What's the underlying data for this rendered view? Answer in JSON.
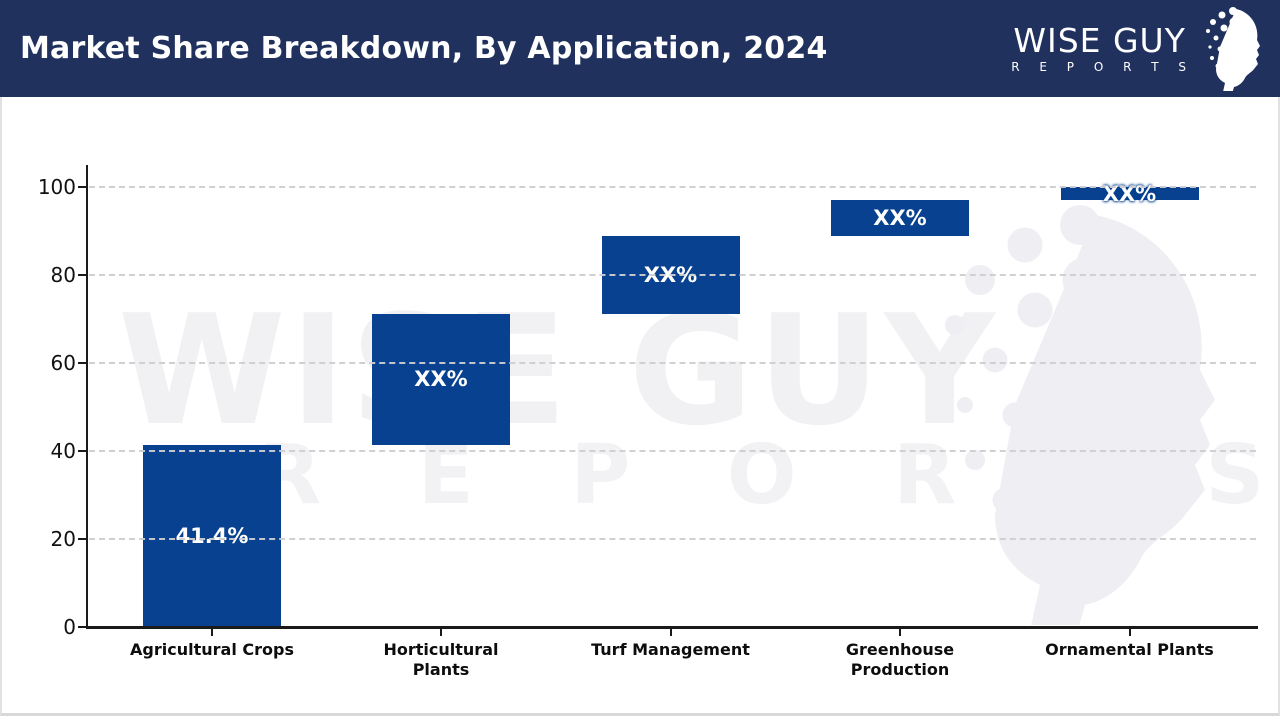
{
  "header": {
    "title": "Market Share Breakdown, By Application, 2024",
    "bg_color": "#20315e",
    "logo": {
      "wordmark": "WISE GUY",
      "subtext": "R E P O R T S"
    }
  },
  "watermark": {
    "wordmark": "WISE GUY",
    "subtext": "R E P O R T S"
  },
  "chart_data": {
    "type": "bar",
    "subtype": "waterfall",
    "title": "Market Share Breakdown, By Application, 2024",
    "categories": [
      "Agricultural Crops",
      "Horticultural Plants",
      "Turf Management",
      "Greenhouse Production",
      "Ornamental Plants"
    ],
    "segments": [
      {
        "category": "Agricultural Crops",
        "tick_lines": [
          "Agricultural Crops"
        ],
        "start": 0,
        "end": 41.4,
        "label": "41.4%"
      },
      {
        "category": "Horticultural Plants",
        "tick_lines": [
          "Horticultural",
          "Plants"
        ],
        "start": 41.4,
        "end": 71.1,
        "label": "XX%"
      },
      {
        "category": "Turf Management",
        "tick_lines": [
          "Turf Management"
        ],
        "start": 71.1,
        "end": 88.9,
        "label": "XX%"
      },
      {
        "category": "Greenhouse Production",
        "tick_lines": [
          "Greenhouse",
          "Production"
        ],
        "start": 88.9,
        "end": 97.0,
        "label": "XX%"
      },
      {
        "category": "Ornamental Plants",
        "tick_lines": [
          "Ornamental Plants"
        ],
        "start": 97.0,
        "end": 100.0,
        "label": "XX%"
      }
    ],
    "yticks": [
      0,
      20,
      40,
      60,
      80,
      100
    ],
    "ylim": [
      0,
      105
    ],
    "grid": "horizontal-dashed",
    "legend": "none",
    "bar_color": "#07418f",
    "bar_label_color": "#ffffff",
    "xlabel": "",
    "ylabel": ""
  }
}
